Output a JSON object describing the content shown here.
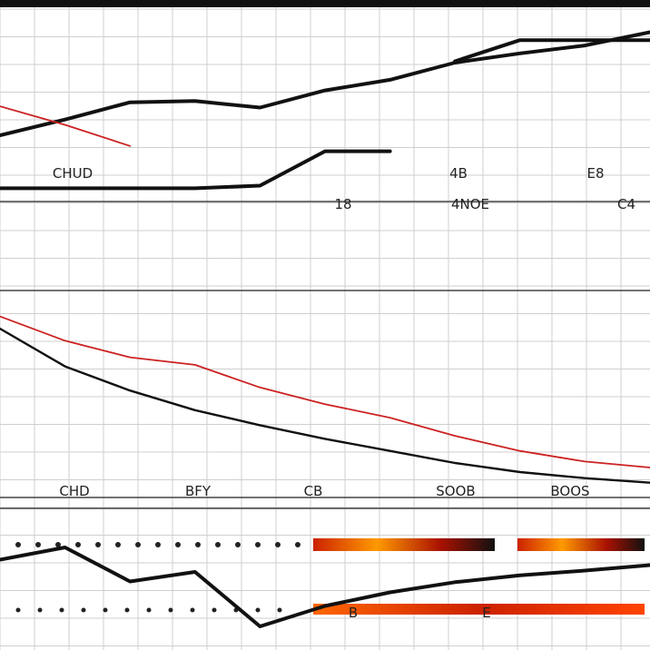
{
  "chart_data": [
    {
      "type": "line",
      "panel": "top",
      "title": "",
      "xlabel": "",
      "ylabel": "",
      "grid": true,
      "tick_labels": [
        "CHUD",
        "18",
        "4B",
        "4NOE",
        "E8",
        "C4"
      ],
      "x": [
        0,
        1,
        2,
        3,
        4,
        5,
        6,
        7,
        8,
        9,
        10
      ],
      "series": [
        {
          "color": "#111111",
          "values": [
            40,
            52,
            65,
            66,
            61,
            74,
            82,
            95,
            102,
            108,
            118
          ]
        },
        {
          "color": "#111111",
          "values": [
            null,
            null,
            null,
            null,
            null,
            null,
            null,
            96,
            112,
            112,
            112
          ]
        },
        {
          "color": "#111111",
          "values": [
            0,
            0,
            0,
            0,
            2,
            28,
            28,
            null,
            null,
            null,
            null
          ]
        },
        {
          "color": "#cc2222",
          "values": [
            62,
            48,
            32,
            null,
            null,
            null,
            null,
            null,
            null,
            null,
            null
          ]
        }
      ],
      "ylim": [
        -10,
        130
      ]
    },
    {
      "type": "line",
      "panel": "middle",
      "title": "",
      "xlabel": "",
      "ylabel": "",
      "grid": true,
      "tick_labels": [
        "CHD",
        "BFY",
        "CB",
        "SOOB",
        "BOOS"
      ],
      "x": [
        0,
        1,
        2,
        3,
        4,
        5,
        6,
        7,
        8,
        9,
        10
      ],
      "series": [
        {
          "color": "#cc2222",
          "values": [
            100,
            84,
            73,
            68,
            53,
            42,
            33,
            21,
            11,
            4,
            0
          ]
        },
        {
          "color": "#111111",
          "values": [
            92,
            67,
            51,
            38,
            28,
            19,
            11,
            3,
            -3,
            -7,
            -10
          ]
        }
      ],
      "ylim": [
        -15,
        110
      ]
    },
    {
      "type": "line",
      "panel": "bottom",
      "title": "",
      "xlabel": "",
      "ylabel": "",
      "grid": true,
      "tick_labels": [
        "B",
        "E"
      ],
      "x": [
        0,
        1,
        2,
        3,
        4,
        5,
        6,
        7,
        8,
        9,
        10
      ],
      "series": [
        {
          "color": "#111111",
          "values": [
            78,
            96,
            46,
            60,
            -20,
            10,
            30,
            45,
            55,
            62,
            70
          ]
        }
      ],
      "ylim": [
        -40,
        120
      ]
    }
  ]
}
